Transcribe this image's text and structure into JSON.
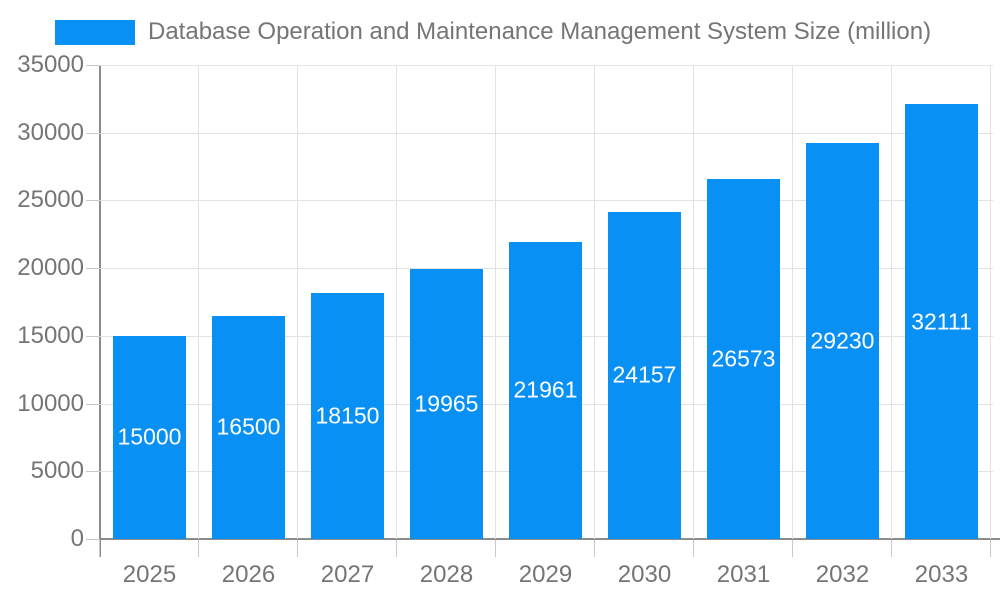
{
  "chart_data": {
    "type": "bar",
    "title": "Database Operation and Maintenance Management System Size (million)",
    "legend_label": "Database Operation and Maintenance Management System Size (million)",
    "legend_position": "top-left",
    "categories": [
      "2025",
      "2026",
      "2027",
      "2028",
      "2029",
      "2030",
      "2031",
      "2032",
      "2033"
    ],
    "values": [
      15000,
      16500,
      18150,
      19965,
      21961,
      24157,
      26573,
      29230,
      32111
    ],
    "xlabel": "",
    "ylabel": "",
    "ylim": [
      0,
      35000
    ],
    "ytick_step": 5000,
    "ytick_labels": [
      "0",
      "5000",
      "10000",
      "15000",
      "20000",
      "25000",
      "30000",
      "35000"
    ],
    "grid": true,
    "bar_color": "#0890f5",
    "value_label_color": "#ffffff",
    "axis_color": "#8c8c8c",
    "gridline_color": "#e2e2e2",
    "tick_color": "#c9c9c9",
    "text_color": "#757575",
    "background_color": "#ffffff"
  }
}
